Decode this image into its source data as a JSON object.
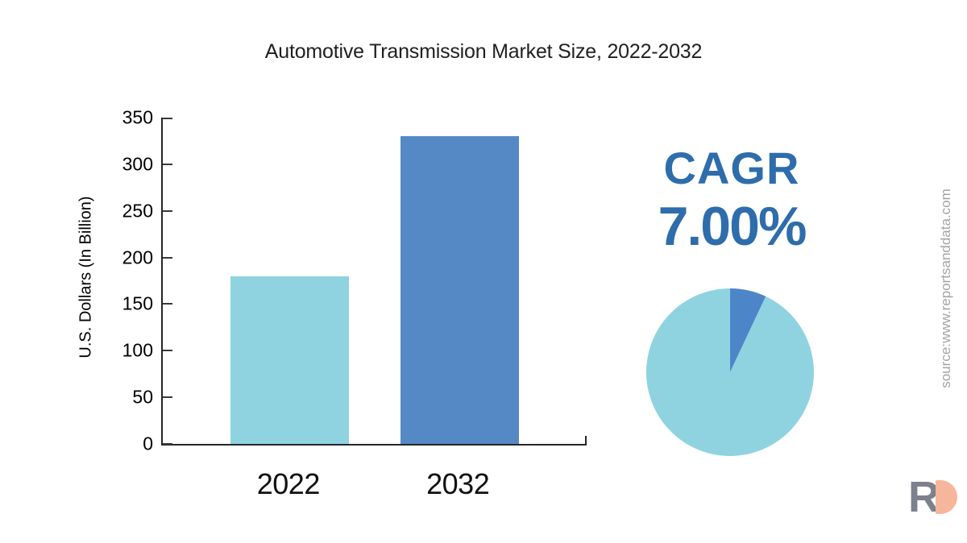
{
  "title": "Automotive Transmission Market Size, 2022-2032",
  "cagr": {
    "label": "CAGR",
    "value": "7.00%"
  },
  "source_note": "source:www.reportsanddata.com",
  "logo": {
    "text": "R"
  },
  "colors": {
    "bar_2022": "#8fd3e1",
    "bar_2032": "#5589c5",
    "pie_slice": "#4d86c8",
    "pie_remainder": "#8fd3e1",
    "cagr_text": "#2e6dab",
    "axis": "#262626",
    "source_text": "#a3a3a3",
    "logo_gray": "#7c818d",
    "logo_peach": "#f6b69b"
  },
  "chart_data": [
    {
      "type": "bar",
      "title": "Automotive Transmission Market Size, 2022-2032",
      "categories": [
        "2022",
        "2032"
      ],
      "values": [
        180,
        330
      ],
      "bar_colors": [
        "#8fd3e1",
        "#5589c5"
      ],
      "xlabel": "",
      "ylabel": "U.S. Dollars (In Billion)",
      "ylim": [
        0,
        350
      ],
      "yticks": [
        0,
        50,
        100,
        150,
        200,
        250,
        300,
        350
      ],
      "grid": false,
      "legend": false
    },
    {
      "type": "pie",
      "title": "CAGR 7.00%",
      "start_angle_deg": 0,
      "slices": [
        {
          "label": "cagr",
          "value": 7,
          "color": "#4d86c8"
        },
        {
          "label": "remainder",
          "value": 93,
          "color": "#8fd3e1"
        }
      ]
    }
  ]
}
